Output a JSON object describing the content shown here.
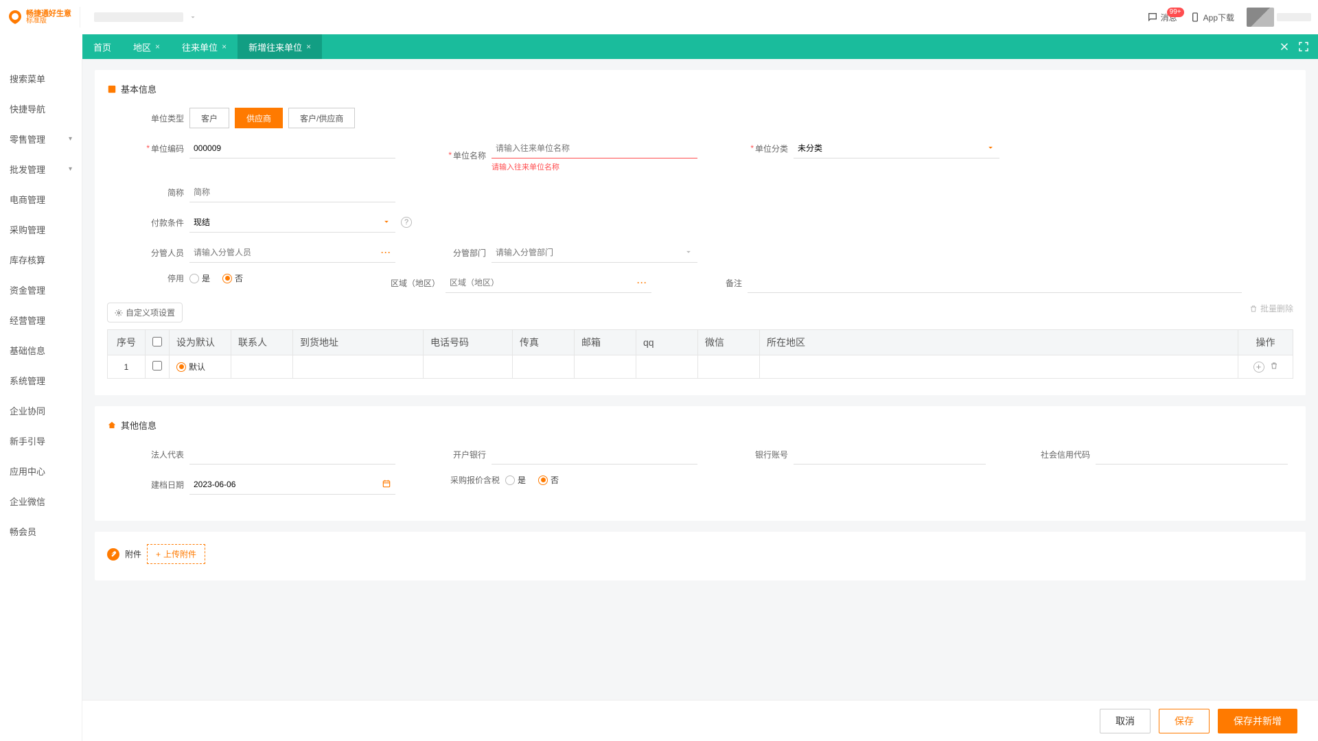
{
  "colors": {
    "primary": "#1abc9c",
    "accent": "#ff7a00",
    "danger": "#ff4d4f"
  },
  "logo": {
    "line1": "畅捷通好生意",
    "line2": "标准版"
  },
  "topbar": {
    "message_label": "消息",
    "message_badge": "99+",
    "appdownload_label": "App下载"
  },
  "tabs": [
    {
      "label": "首页",
      "closable": false,
      "active": false
    },
    {
      "label": "地区",
      "closable": true,
      "active": false
    },
    {
      "label": "往来单位",
      "closable": true,
      "active": false
    },
    {
      "label": "新增往来单位",
      "closable": true,
      "active": true
    }
  ],
  "sidebar": [
    {
      "label": "搜索菜单",
      "expandable": false
    },
    {
      "label": "快捷导航",
      "expandable": false
    },
    {
      "label": "零售管理",
      "expandable": true
    },
    {
      "label": "批发管理",
      "expandable": true
    },
    {
      "label": "电商管理",
      "expandable": false
    },
    {
      "label": "采购管理",
      "expandable": false
    },
    {
      "label": "库存核算",
      "expandable": false
    },
    {
      "label": "资金管理",
      "expandable": false
    },
    {
      "label": "经营管理",
      "expandable": false
    },
    {
      "label": "基础信息",
      "expandable": false
    },
    {
      "label": "系统管理",
      "expandable": false
    },
    {
      "label": "企业协同",
      "expandable": false
    },
    {
      "label": "新手引导",
      "expandable": false
    },
    {
      "label": "应用中心",
      "expandable": false
    },
    {
      "label": "企业微信",
      "expandable": false
    },
    {
      "label": "畅会员",
      "expandable": false
    }
  ],
  "section_basic": "基本信息",
  "section_other": "其他信息",
  "section_attach": "附件",
  "labels": {
    "unit_type": "单位类型",
    "unit_code": "单位编码",
    "unit_name": "单位名称",
    "unit_category": "单位分类",
    "short_name": "简称",
    "pay_terms": "付款条件",
    "responsible_person": "分管人员",
    "responsible_dept": "分管部门",
    "disabled": "停用",
    "region": "区域（地区）",
    "remark": "备注",
    "legal_rep": "法人代表",
    "bank": "开户银行",
    "bank_account": "银行账号",
    "credit_code": "社会信用代码",
    "archive_date": "建档日期",
    "purchase_tax": "采购报价含税"
  },
  "unit_type_options": {
    "customer": "客户",
    "supplier": "供应商",
    "both": "客户/供应商"
  },
  "form": {
    "unit_type_selected": "supplier",
    "unit_code": "000009",
    "unit_name": "",
    "unit_name_placeholder": "请输入往来单位名称",
    "unit_name_error": "请输入往来单位名称",
    "unit_category": "未分类",
    "short_name": "",
    "short_name_placeholder": "简称",
    "pay_terms": "现结",
    "responsible_person": "",
    "responsible_person_placeholder": "请输入分管人员",
    "responsible_dept": "",
    "responsible_dept_placeholder": "请输入分管部门",
    "disabled": "no",
    "region": "",
    "region_placeholder": "区域（地区）",
    "remark": "",
    "archive_date": "2023-06-06",
    "purchase_tax": "no"
  },
  "yes_no": {
    "yes": "是",
    "no": "否"
  },
  "custom_fields_btn": "自定义项设置",
  "bulk_delete": "批量删除",
  "contacts_table": {
    "headers": {
      "idx": "序号",
      "set_default": "设为默认",
      "contact": "联系人",
      "ship_addr": "到货地址",
      "phone": "电话号码",
      "fax": "传真",
      "email": "邮箱",
      "qq": "qq",
      "wechat": "微信",
      "region": "所在地区",
      "ops": "操作"
    },
    "default_label": "默认",
    "rows": [
      {
        "idx": "1",
        "is_default": true
      }
    ]
  },
  "upload_btn": "上传附件",
  "footer": {
    "cancel": "取消",
    "save": "保存",
    "save_new": "保存并新增"
  }
}
